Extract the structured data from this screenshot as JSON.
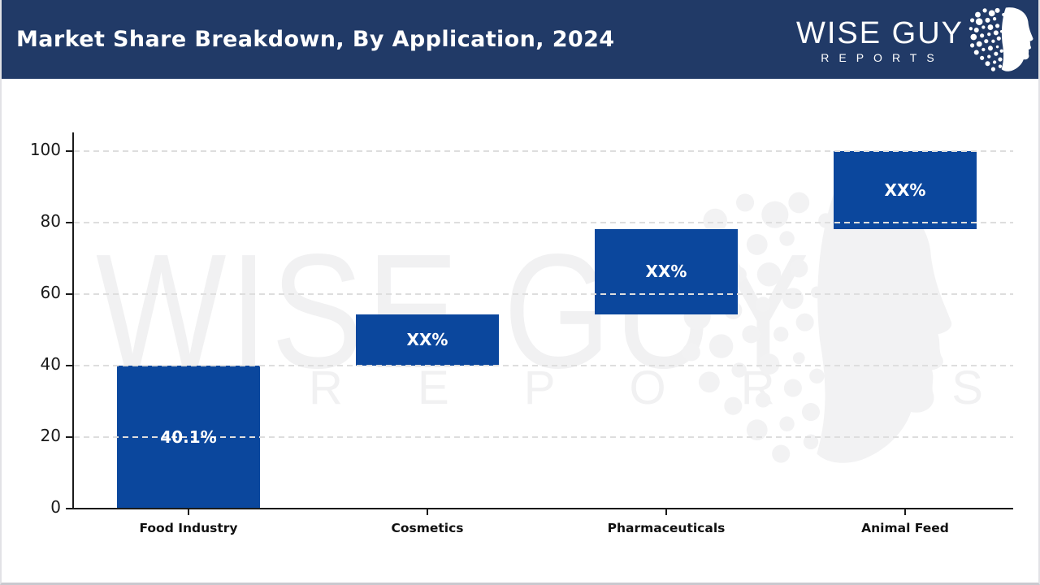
{
  "header": {
    "title": "Market Share Breakdown, By Application, 2024",
    "logo": {
      "wordmark": "WISE GUY",
      "subtext": "REPORTS"
    }
  },
  "watermark": {
    "line1": "WISE GUY",
    "line2": "R E P O R T S"
  },
  "chart_data": {
    "type": "bar",
    "subtype": "waterfall",
    "title": "Market Share Breakdown, By Application, 2024",
    "categories": [
      "Food Industry",
      "Cosmetics",
      "Pharmaceuticals",
      "Animal Feed"
    ],
    "segments": [
      {
        "category": "Food Industry",
        "start": 0,
        "end": 40.1,
        "label": "40.1%"
      },
      {
        "category": "Cosmetics",
        "start": 40.1,
        "end": 54.4,
        "label": "XX%"
      },
      {
        "category": "Pharmaceuticals",
        "start": 54.4,
        "end": 78.2,
        "label": "XX%"
      },
      {
        "category": "Animal Feed",
        "start": 78.2,
        "end": 100,
        "label": "XX%"
      }
    ],
    "xlabel": "",
    "ylabel": "",
    "yticks": [
      0,
      20,
      40,
      60,
      80,
      100
    ],
    "ylim": [
      0,
      105
    ],
    "grid": true,
    "gridline_style": "dashed",
    "legend": "none",
    "colors": {
      "bar": "#0b479d",
      "bar_label": "#ffffff",
      "axis": "#1a1a1a",
      "gridline": "#dedede",
      "tick_label": "#1a1a1a",
      "category_label": "#111111"
    }
  },
  "colors": {
    "header_bg": "#213a67",
    "page_bg": "#ffffff",
    "watermark": "#f1f1f2"
  }
}
